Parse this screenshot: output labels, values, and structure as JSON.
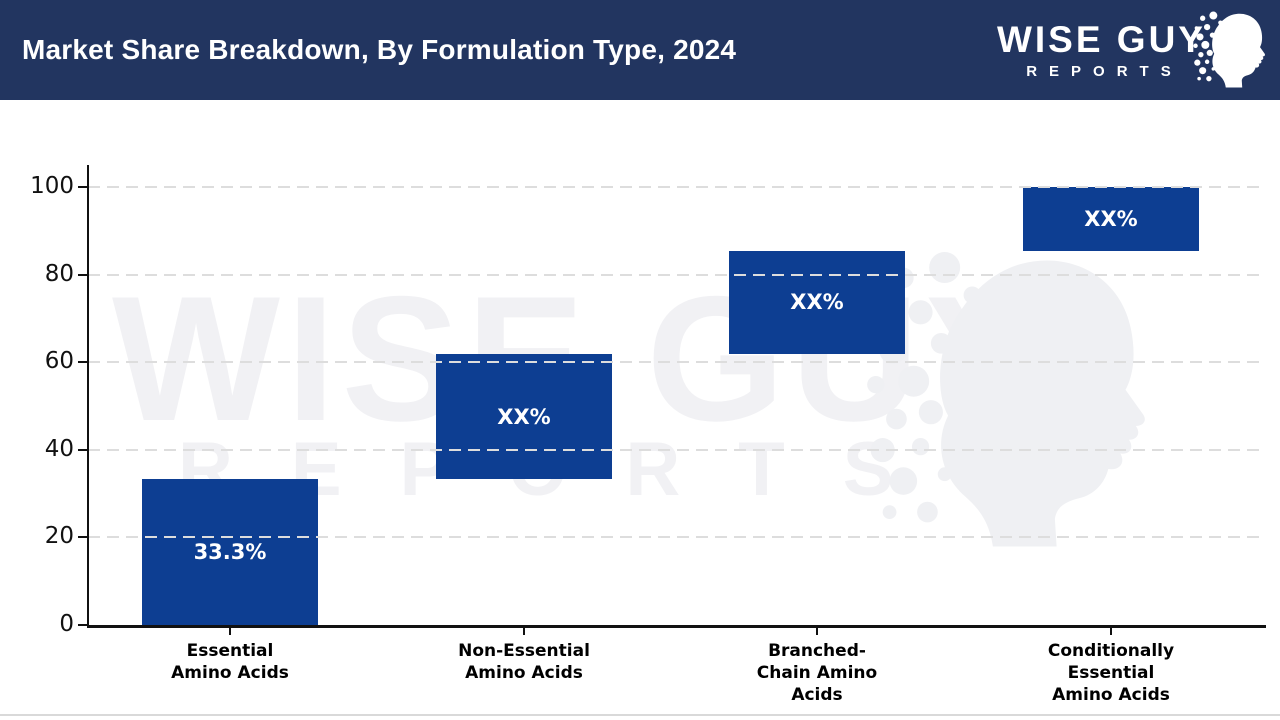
{
  "header": {
    "title": "Market Share Breakdown, By Formulation Type, 2024",
    "brand": {
      "name": "WISE GUY",
      "tagline": "REPORTS"
    }
  },
  "watermark": {
    "name": "WISE GUY",
    "tagline": "REPORTS"
  },
  "chart_data": {
    "type": "bar",
    "variant": "floating-segment-waterfall",
    "title": "Market Share Breakdown, By Formulation Type, 2024",
    "categories": [
      "Essential Amino Acids",
      "Non-Essential Amino Acids",
      "Branched-Chain Amino Acids",
      "Conditionally Essential Amino Acids"
    ],
    "series": [
      {
        "name": "Market share (%)",
        "segments": [
          {
            "category": "Essential Amino Acids",
            "start": 0,
            "end": 33.3,
            "label": "33.3%"
          },
          {
            "category": "Non-Essential Amino Acids",
            "start": 33.3,
            "end": 61.9,
            "label": "XX%"
          },
          {
            "category": "Branched-Chain Amino Acids",
            "start": 61.9,
            "end": 85.5,
            "label": "XX%"
          },
          {
            "category": "Conditionally Essential Amino Acids",
            "start": 85.5,
            "end": 100,
            "label": "XX%"
          }
        ]
      }
    ],
    "xlabel": "",
    "ylabel": "",
    "ylim": [
      0,
      100
    ],
    "yticks": [
      0,
      20,
      40,
      60,
      80,
      100
    ],
    "grid": "horizontal-dashed",
    "legend": "none",
    "bar_color": "#0d3e92",
    "bar_label_color": "#ffffff"
  },
  "colors": {
    "header_bg": "#223560",
    "bar": "#0d3e92",
    "gridline": "#dddddd",
    "axis": "#111111",
    "watermark": "#f1f1f4"
  }
}
